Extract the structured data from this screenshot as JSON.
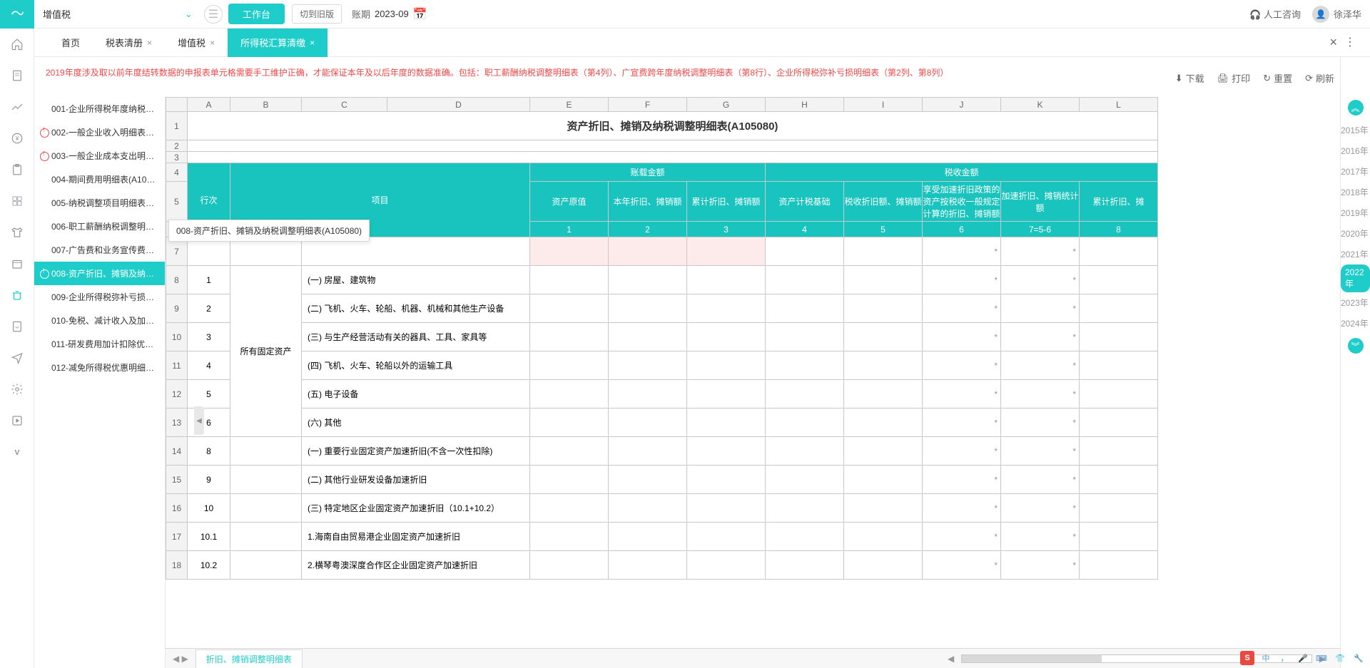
{
  "topbar": {
    "dropdown_label": "增值税",
    "workspace_btn": "工作台",
    "switch_old": "切到旧版",
    "period_label": "账期",
    "period_value": "2023-09",
    "support": "人工咨询",
    "username": "徐泽华"
  },
  "tabs": {
    "items": [
      {
        "label": "首页",
        "closable": false,
        "active": false
      },
      {
        "label": "税表清册",
        "closable": true,
        "active": false
      },
      {
        "label": "增值税",
        "closable": true,
        "active": false
      },
      {
        "label": "所得税汇算清缴",
        "closable": true,
        "active": true
      }
    ],
    "close_icon": "×",
    "menu_icon": "⋮"
  },
  "warning": "2019年度涉及取以前年度结转数据的申报表单元格需要手工维护正确，才能保证本年及以后年度的数据准确。包括：职工薪酬纳税调整明细表（第4列）、广宣费跨年度纳税调整明细表（第8行）、企业所得税弥补亏损明细表（第2列、第8列）",
  "actions": {
    "download": "下载",
    "print": "打印",
    "reset": "重置",
    "refresh": "刷新"
  },
  "tree": [
    {
      "label": "001-企业所得税年度纳税申...",
      "icon": false,
      "selected": false
    },
    {
      "label": "002-一般企业收入明细表(A1...",
      "icon": true,
      "selected": false
    },
    {
      "label": "003-一般企业成本支出明细...",
      "icon": true,
      "selected": false
    },
    {
      "label": "004-期间费用明细表(A1040...",
      "icon": false,
      "selected": false
    },
    {
      "label": "005-纳税调整项目明细表(A1...",
      "icon": false,
      "selected": false
    },
    {
      "label": "006-职工薪酬纳税调整明细...",
      "icon": false,
      "selected": false
    },
    {
      "label": "007-广告费和业务宣传费跨...",
      "icon": false,
      "selected": false
    },
    {
      "label": "008-资产折旧、摊销及纳税...",
      "icon": true,
      "selected": true
    },
    {
      "label": "009-企业所得税弥补亏损明...",
      "icon": false,
      "selected": false
    },
    {
      "label": "010-免税、减计收入及加计...",
      "icon": false,
      "selected": false
    },
    {
      "label": "011-研发费用加计扣除优惠...",
      "icon": false,
      "selected": false
    },
    {
      "label": "012-减免所得税优惠明细表(...",
      "icon": false,
      "selected": false
    }
  ],
  "tooltip": "008-资产折旧、摊销及纳税调整明细表(A105080)",
  "sheet": {
    "col_letters": [
      "A",
      "B",
      "C",
      "D",
      "E",
      "F",
      "G",
      "H",
      "I",
      "J",
      "K",
      "L"
    ],
    "title": "资产折旧、摊销及纳税调整明细表(A105080)",
    "hdr_rowcol": "行次",
    "hdr_item": "项目",
    "hdr_book": "账载金额",
    "hdr_tax": "税收金额",
    "sub_book": [
      "资产原值",
      "本年折旧、摊销额",
      "累计折旧、摊销额"
    ],
    "sub_tax": [
      "资产计税基础",
      "税收折旧额、摊销额",
      "享受加速折旧政策的资产按税收一般规定计算的折旧、摊销额",
      "加速折旧、摊销统计额",
      "累计折旧、摊"
    ],
    "col_nums": [
      "1",
      "2",
      "3",
      "4",
      "5",
      "6",
      "7=5-6",
      "8"
    ],
    "rows": [
      {
        "n": "7",
        "idx": "",
        "item": "",
        "pink": true
      },
      {
        "n": "8",
        "idx": "1",
        "item": "(一) 房屋、建筑物",
        "cat": "所有固定资产"
      },
      {
        "n": "9",
        "idx": "2",
        "item": "(二) 飞机、火车、轮船、机器、机械和其他生产设备"
      },
      {
        "n": "10",
        "idx": "3",
        "item": "(三) 与生产经营活动有关的器具、工具、家具等"
      },
      {
        "n": "11",
        "idx": "4",
        "item": "(四) 飞机、火车、轮船以外的运输工具"
      },
      {
        "n": "12",
        "idx": "5",
        "item": "(五) 电子设备"
      },
      {
        "n": "13",
        "idx": "6",
        "item": "(六) 其他"
      },
      {
        "n": "14",
        "idx": "8",
        "item": "(一) 重要行业固定资产加速折旧(不含一次性扣除)"
      },
      {
        "n": "15",
        "idx": "9",
        "item": "(二) 其他行业研发设备加速折旧"
      },
      {
        "n": "16",
        "idx": "10",
        "item": "(三) 特定地区企业固定资产加速折旧（10.1+10.2）"
      },
      {
        "n": "17",
        "idx": "10.1",
        "item": "1.海南自由贸易港企业固定资产加速折旧"
      },
      {
        "n": "18",
        "idx": "10.2",
        "item": "2.横琴粤澳深度合作区企业固定资产加速折旧"
      }
    ],
    "tab_label": "折旧、摊销调整明细表"
  },
  "years": [
    "2015年",
    "2016年",
    "2017年",
    "2018年",
    "2019年",
    "2020年",
    "2021年",
    "2022年",
    "2023年",
    "2024年"
  ],
  "year_active": "2022年",
  "ime": [
    "中",
    "，"
  ],
  "colors": {
    "teal": "#1ecdc9",
    "teal_hdr": "#18c4bd",
    "pink": "#fdebeb",
    "red": "#f04848"
  }
}
